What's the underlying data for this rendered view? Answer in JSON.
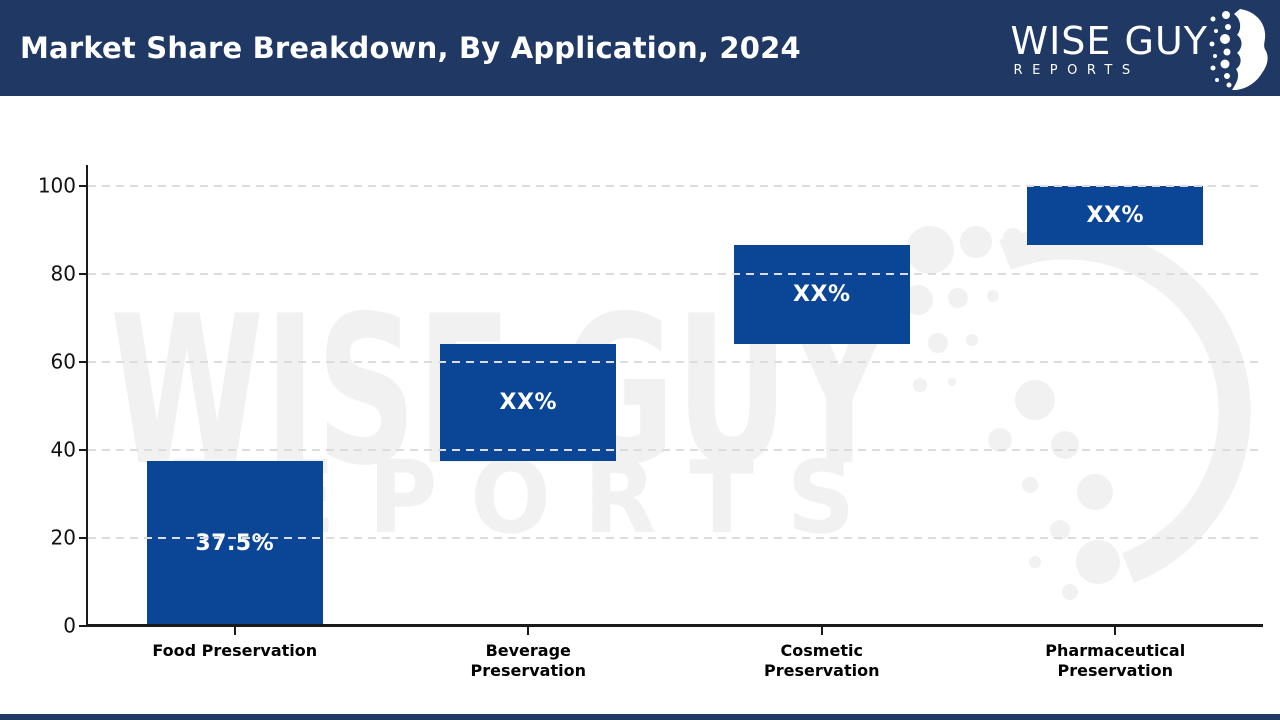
{
  "header": {
    "title": "Market Share Breakdown, By Application, 2024",
    "logo": {
      "line1": "WISE GUY",
      "line2": "REPORTS"
    }
  },
  "watermark": {
    "line1": "WISE GUY",
    "line2": "R E P O R T S"
  },
  "chart_data": {
    "type": "bar",
    "subtype": "waterfall",
    "title": "Market Share Breakdown, By Application, 2024",
    "categories": [
      "Food Preservation",
      "Beverage Preservation",
      "Cosmetic Preservation",
      "Pharmaceutical Preservation"
    ],
    "segments": [
      {
        "category": "Food Preservation",
        "start": 0,
        "end": 37.5,
        "label": "37.5%"
      },
      {
        "category": "Beverage Preservation",
        "start": 37.5,
        "end": 64,
        "label": "XX%"
      },
      {
        "category": "Cosmetic Preservation",
        "start": 64,
        "end": 86.5,
        "label": "XX%"
      },
      {
        "category": "Pharmaceutical Preservation",
        "start": 86.5,
        "end": 100,
        "label": "XX%"
      }
    ],
    "ylim": [
      0,
      100
    ],
    "yticks": [
      0,
      20,
      40,
      60,
      80,
      100
    ],
    "xlabel": "",
    "ylabel": "",
    "grid": "horizontal-dashed",
    "legend": "none"
  },
  "colors": {
    "header_bg": "#1F3864",
    "footer_bg": "#1F3864",
    "background": "#FFFFFF",
    "bar": "#0A4596",
    "bar_label": "#FFFFFF",
    "axis": "#1A1A1A",
    "gridline": "#DCDCDC",
    "watermark": "#F1F1F1"
  }
}
